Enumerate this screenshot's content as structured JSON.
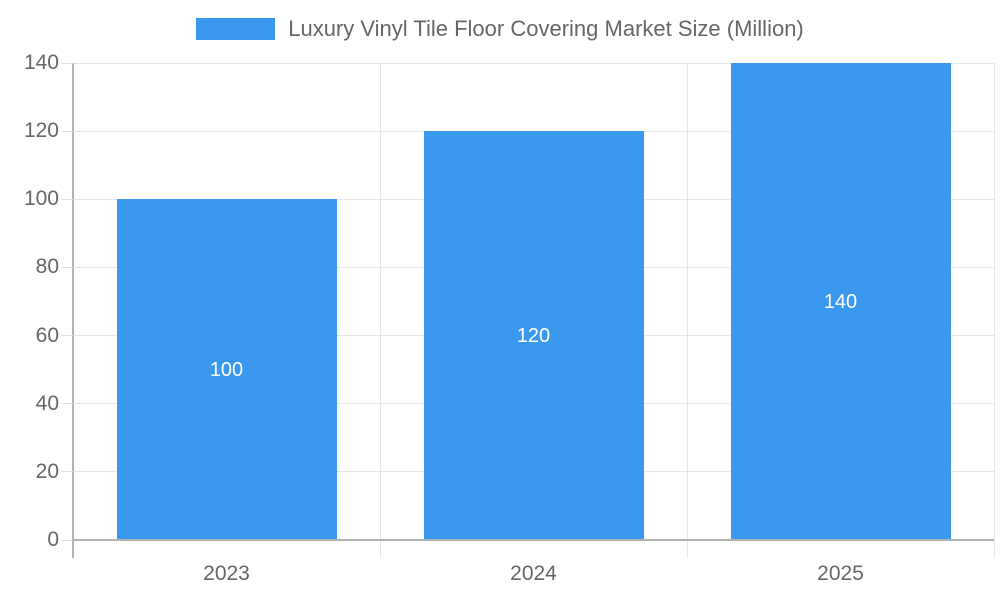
{
  "chart_data": {
    "type": "bar",
    "title": "Luxury Vinyl Tile Floor Covering Market Size (Million)",
    "categories": [
      "2023",
      "2024",
      "2025"
    ],
    "values": [
      100,
      120,
      140
    ],
    "series": [
      {
        "name": "Luxury Vinyl Tile Floor Covering Market Size (Million)",
        "values": [
          100,
          120,
          140
        ]
      }
    ],
    "bar_labels": [
      "100",
      "120",
      "140"
    ],
    "xlabel": "",
    "ylabel": "",
    "ylim": [
      0,
      140
    ],
    "yticks": [
      0,
      20,
      40,
      60,
      80,
      100,
      120,
      140
    ],
    "grid": true,
    "legend_position": "top",
    "colors": {
      "bar": "#3a98ee",
      "bar_label_text": "#ffffff",
      "axis_text": "#666666",
      "gridline": "#e6e6e6",
      "axis_line": "#b2b2b2",
      "background": "#ffffff"
    }
  }
}
